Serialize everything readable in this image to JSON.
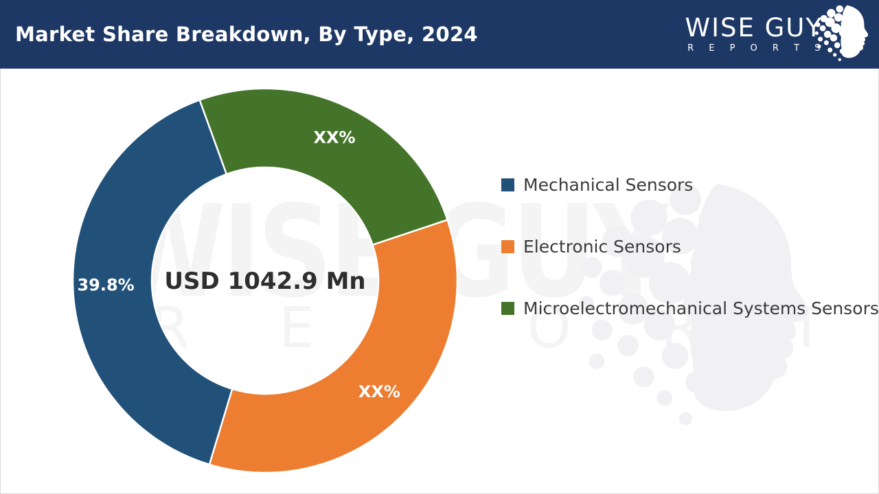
{
  "header": {
    "title": "Market Share Breakdown, By Type, 2024",
    "bg_color": "#1e3866",
    "logo": {
      "wordmark": "WISE GUY",
      "subtext": "R E P O R T S"
    }
  },
  "watermark": {
    "wordmark": "WISE GUY",
    "subtext": "R E P O R T S"
  },
  "chart_data": {
    "type": "pie",
    "subtype": "donut",
    "title": "Market Share Breakdown, By Type, 2024",
    "center_label": "USD 1042.9 Mn",
    "categories": [
      "Mechanical Sensors",
      "Electronic Sensors",
      "Microelectromechanical Systems Sensors"
    ],
    "values": [
      39.8,
      34.8,
      25.4
    ],
    "value_labels": [
      "39.8%",
      "XX%",
      "XX%"
    ],
    "colors": [
      "#215079",
      "#ed7d31",
      "#447429"
    ],
    "start_angle_deg": 109.9,
    "direction": "counterclockwise",
    "inner_radius_ratio": 0.59,
    "legend_position": "right",
    "label_color": "#ffffff",
    "center_label_color": "#2e2e2e"
  }
}
